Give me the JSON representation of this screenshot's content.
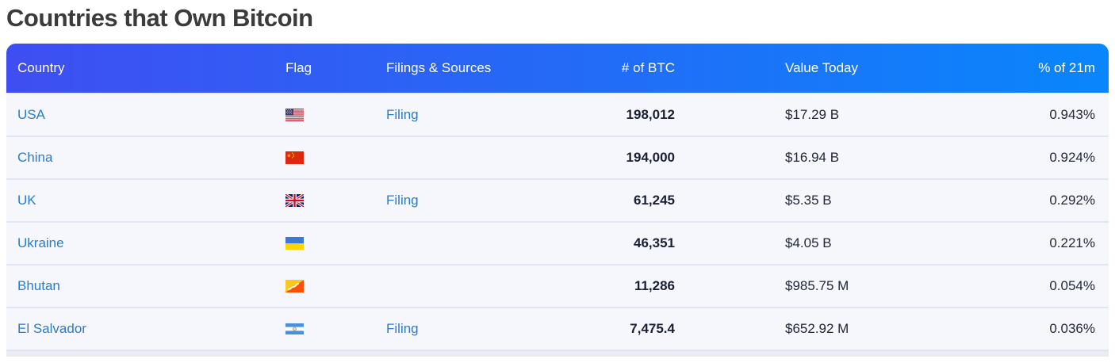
{
  "page": {
    "title": "Countries that Own Bitcoin"
  },
  "table": {
    "columns": [
      "Country",
      "Flag",
      "Filings & Sources",
      "# of BTC",
      "Value Today",
      "% of 21m"
    ],
    "rows": [
      {
        "country": "USA",
        "flag": "us",
        "flag_icon": "usa-flag-icon",
        "filing": "Filing",
        "btc": "198,012",
        "value": "$17.29 B",
        "pct": "0.943%"
      },
      {
        "country": "China",
        "flag": "cn",
        "flag_icon": "china-flag-icon",
        "filing": "",
        "btc": "194,000",
        "value": "$16.94 B",
        "pct": "0.924%"
      },
      {
        "country": "UK",
        "flag": "gb",
        "flag_icon": "uk-flag-icon",
        "filing": "Filing",
        "btc": "61,245",
        "value": "$5.35 B",
        "pct": "0.292%"
      },
      {
        "country": "Ukraine",
        "flag": "ua",
        "flag_icon": "ukraine-flag-icon",
        "filing": "",
        "btc": "46,351",
        "value": "$4.05 B",
        "pct": "0.221%"
      },
      {
        "country": "Bhutan",
        "flag": "bt",
        "flag_icon": "bhutan-flag-icon",
        "filing": "",
        "btc": "11,286",
        "value": "$985.75 M",
        "pct": "0.054%"
      },
      {
        "country": "El Salvador",
        "flag": "sv",
        "flag_icon": "el-salvador-flag-icon",
        "filing": "Filing",
        "btc": "7,475.4",
        "value": "$652.92 M",
        "pct": "0.036%"
      }
    ]
  },
  "colors": {
    "header_gradient_start": "#3f4ef2",
    "header_gradient_end": "#0986fb",
    "link_blue": "#2b7cc9",
    "row_background": "#f5f7fd",
    "row_divider": "#dfe5f7",
    "number_dark": "#1a2033",
    "title_gray": "#3b3b3b"
  }
}
